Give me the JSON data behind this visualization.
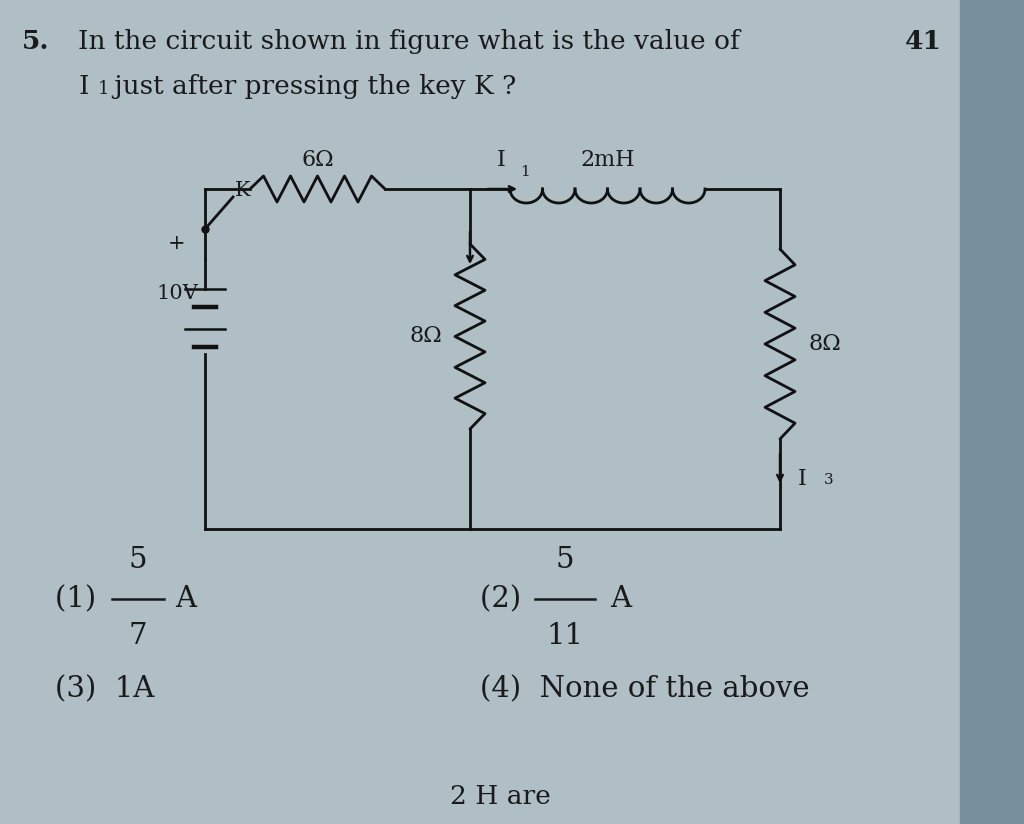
{
  "bg_color": "#b0bec5",
  "question_number": "5.",
  "question_text": "In the circuit shown in figure what is the value of",
  "question_text2_part1": "I",
  "question_text2_sub": "1",
  "question_text2_part2": " just after pressing the key K ?",
  "page_number": "41",
  "circuit": {
    "voltage": "10V",
    "resistor_top": "6Ω",
    "inductor": "2mH",
    "resistor_mid": "8Ω",
    "resistor_right": "8Ω",
    "current_label1": "I",
    "current_label1_sub": "1",
    "current_label3": "I",
    "current_label3_sub": "3",
    "key_label": "K",
    "plus_label": "+"
  },
  "options": {
    "opt1_num": "5",
    "opt1_den": "7",
    "opt1_unit": "A",
    "opt2_num": "5",
    "opt2_den": "11",
    "opt2_unit": "A",
    "opt3": "1A",
    "opt4": "None of the above"
  },
  "bottom_text": "2 H are",
  "font_color": "#1a1a1a",
  "right_bar_color": "#8090a0"
}
